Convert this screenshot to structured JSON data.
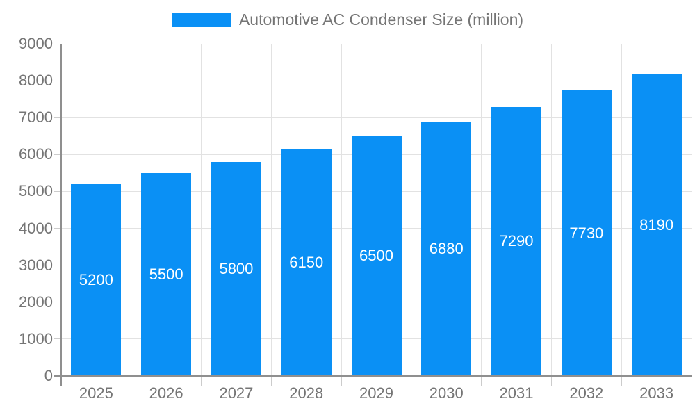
{
  "legend": {
    "label": "Automotive AC Condenser Size (million)"
  },
  "chart_data": {
    "type": "bar",
    "title": "Automotive AC Condenser Size (million)",
    "categories": [
      "2025",
      "2026",
      "2027",
      "2028",
      "2029",
      "2030",
      "2031",
      "2032",
      "2033"
    ],
    "series": [
      {
        "name": "Automotive AC Condenser Size (million)",
        "values": [
          5200,
          5500,
          5800,
          6150,
          6500,
          6880,
          7290,
          7730,
          8190
        ]
      }
    ],
    "value_labels": [
      "5200",
      "5500",
      "5800",
      "6150",
      "6500",
      "6880",
      "7290",
      "7730",
      "8190"
    ],
    "xlabel": "",
    "ylabel": "",
    "ylim": [
      0,
      9000
    ],
    "ytick_step": 1000,
    "ytick_labels": [
      "0",
      "1000",
      "2000",
      "3000",
      "4000",
      "5000",
      "6000",
      "7000",
      "8000",
      "9000"
    ],
    "grid": true,
    "legend_position": "top-center",
    "value_label_position": "inside-center"
  },
  "colors": {
    "bar": "#0a90f5",
    "grid": "#e2e2e2",
    "axis": "#8f8f8f",
    "tick": "#cccccc",
    "text": "#757575",
    "value_label": "#ffffff",
    "background": "#ffffff"
  }
}
